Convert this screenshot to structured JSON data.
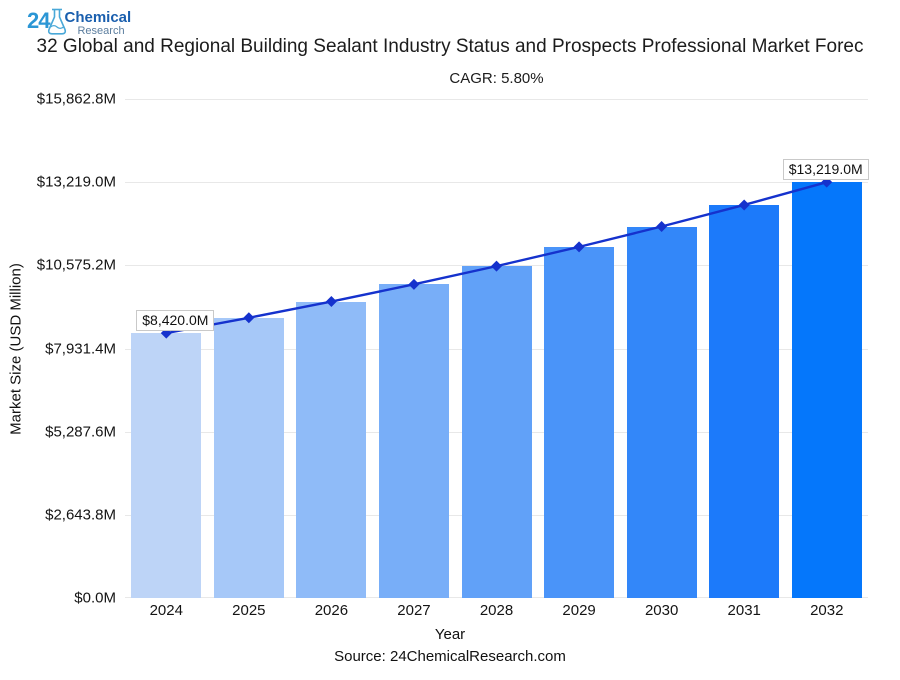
{
  "logo": {
    "prefix": "24",
    "brand": "Chemical",
    "sub": "Research"
  },
  "header": {
    "title": "32 Global and Regional Building Sealant Industry Status and Prospects Professional Market Forec"
  },
  "footer": {
    "source": "Source: 24ChemicalResearch.com"
  },
  "chart_data": {
    "type": "bar",
    "title": "CAGR: 5.80%",
    "xlabel": "Year",
    "ylabel": "Market Size (USD Million)",
    "categories": [
      "2024",
      "2025",
      "2026",
      "2027",
      "2028",
      "2029",
      "2030",
      "2031",
      "2032"
    ],
    "series": [
      {
        "name": "Market Size bars",
        "type": "bar",
        "values": [
          8420.0,
          8908.4,
          9425.0,
          9971.7,
          10550.1,
          11162.0,
          11809.4,
          12494.3,
          13219.0
        ]
      },
      {
        "name": "Market Size trend line",
        "type": "line",
        "values": [
          8420.0,
          8908.4,
          9425.0,
          9971.7,
          10550.1,
          11162.0,
          11809.4,
          12494.3,
          13219.0
        ]
      }
    ],
    "ylim": [
      0,
      15862.8
    ],
    "ytick_values": [
      0,
      2643.8,
      5287.6,
      7931.4,
      10575.2,
      13219.0,
      15862.8
    ],
    "ytick_labels": [
      "$0.0M",
      "$2,643.8M",
      "$5,287.6M",
      "$7,931.4M",
      "$10,575.2M",
      "$13,219.0M",
      "$15,862.8M"
    ],
    "grid": "horizontal",
    "legend": "none",
    "bar_colors": [
      "#BDD4F7",
      "#A6C8F8",
      "#8FBBF8",
      "#78AEF8",
      "#61A1F8",
      "#4A94F9",
      "#3387F9",
      "#1C7AFA",
      "#0577FB"
    ],
    "line_color": "#1532cd",
    "annotations": [
      {
        "index": 0,
        "text": "$8,420.0M"
      },
      {
        "index": 8,
        "text": "$13,219.0M"
      }
    ]
  }
}
